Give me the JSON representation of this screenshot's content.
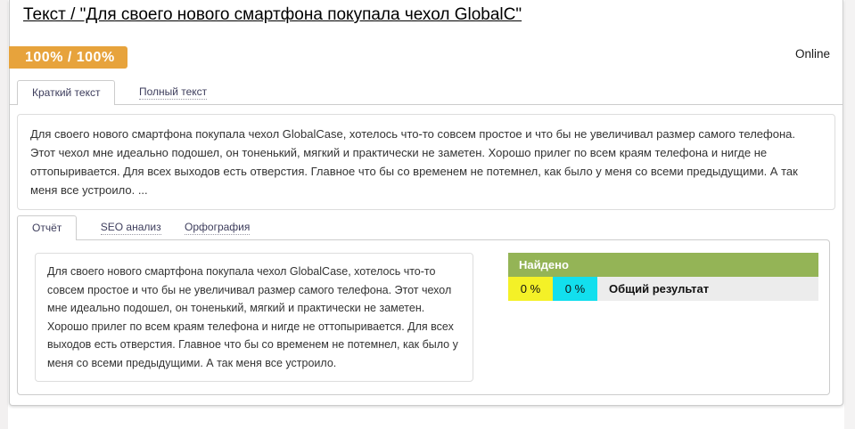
{
  "page": {
    "title": "Текст / \"Для своего нового смартфона покупала чехол GlobalC\"",
    "score": "100% / 100%",
    "status": "Online"
  },
  "tabs_text": {
    "short_label": "Краткий текст",
    "full_label": "Полный текст"
  },
  "short_text": {
    "content": "Для своего нового смартфона покупала чехол GlobalCase, хотелось что-то совсем простое и что бы не увеличивал размер самого телефона. Этот чехол мне идеально подошел, он тоненький, мягкий и практически не заметен. Хорошо прилег по всем краям телефона и нигде не оттопыривается. Для всех выходов есть отверстия. Главное что бы со временем не потемнел, как было у меня со всеми предыдущими. А так меня все устроило. ..."
  },
  "tabs_report": {
    "report_label": "Отчёт",
    "seo_label": "SEO анализ",
    "spelling_label": "Орфография"
  },
  "report": {
    "text": "Для своего нового смартфона покупала чехол GlobalCase, хотелось что-то совсем простое и что бы не увеличивал размер самого телефона. Этот чехол мне идеально подошел, он тоненький, мягкий и практически не заметен. Хорошо прилег по всем краям телефона и нигде не оттопыривается. Для всех выходов есть отверстия. Главное что бы со временем не потемнел, как было у меня со всеми предыдущими. А так меня все устроило.",
    "found_header": "Найдено",
    "yellow_percent": "0 %",
    "cyan_percent": "0 %",
    "result_label": "Общий результат"
  },
  "colors": {
    "badge_orange": "#e7a33c",
    "found_green": "#94b456",
    "cell_yellow": "#f4f127",
    "cell_cyan": "#12dfee"
  }
}
